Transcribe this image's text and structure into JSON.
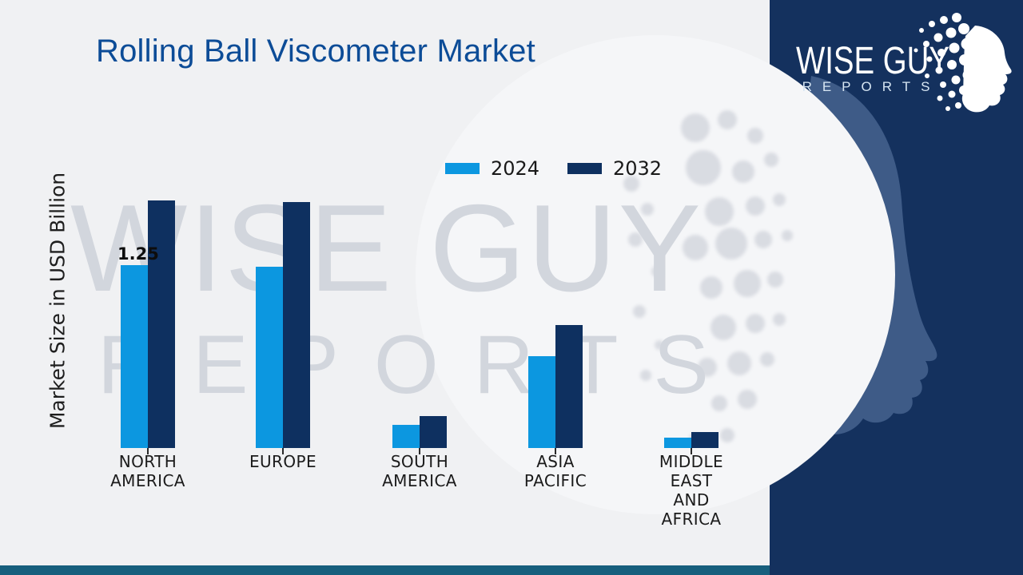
{
  "page": {
    "title": "Rolling Ball Viscometer Market"
  },
  "logo": {
    "line1": "WISE GUY",
    "line2": "REPORTS"
  },
  "watermark": {
    "line1": "WISE GUY",
    "line2": "REPORTS"
  },
  "colors": {
    "page_bg": "#f0f1f3",
    "title": "#0c4c97",
    "navy_panel": "#14315e",
    "teal_bar": "#175f7d",
    "light_circle": "#f5f6f8",
    "muted_face": "#3e5b87",
    "gray_dots": "#d9dce2",
    "logo_white": "#ffffff",
    "accent_2024": "#0c97e0",
    "accent_2032": "#0e3060"
  },
  "chart_data": {
    "type": "bar",
    "title": "Rolling Ball Viscometer Market",
    "xlabel": "",
    "ylabel": "Market Size in USD Billion",
    "categories": [
      "NORTH\nAMERICA",
      "EUROPE",
      "SOUTH\nAMERICA",
      "ASIA\nPACIFIC",
      "MIDDLE\nEAST\nAND\nAFRICA"
    ],
    "series": [
      {
        "name": "2024",
        "color": "#0c97e0",
        "values": [
          1.25,
          1.24,
          0.16,
          0.63,
          0.07
        ]
      },
      {
        "name": "2032",
        "color": "#0e3060",
        "values": [
          1.69,
          1.68,
          0.22,
          0.84,
          0.11
        ]
      }
    ],
    "annotations": [
      {
        "series": "2024",
        "category_index": 0,
        "text": "1.25"
      }
    ],
    "ylim": [
      0,
      2
    ],
    "grid": false,
    "legend_position": "top-center"
  }
}
